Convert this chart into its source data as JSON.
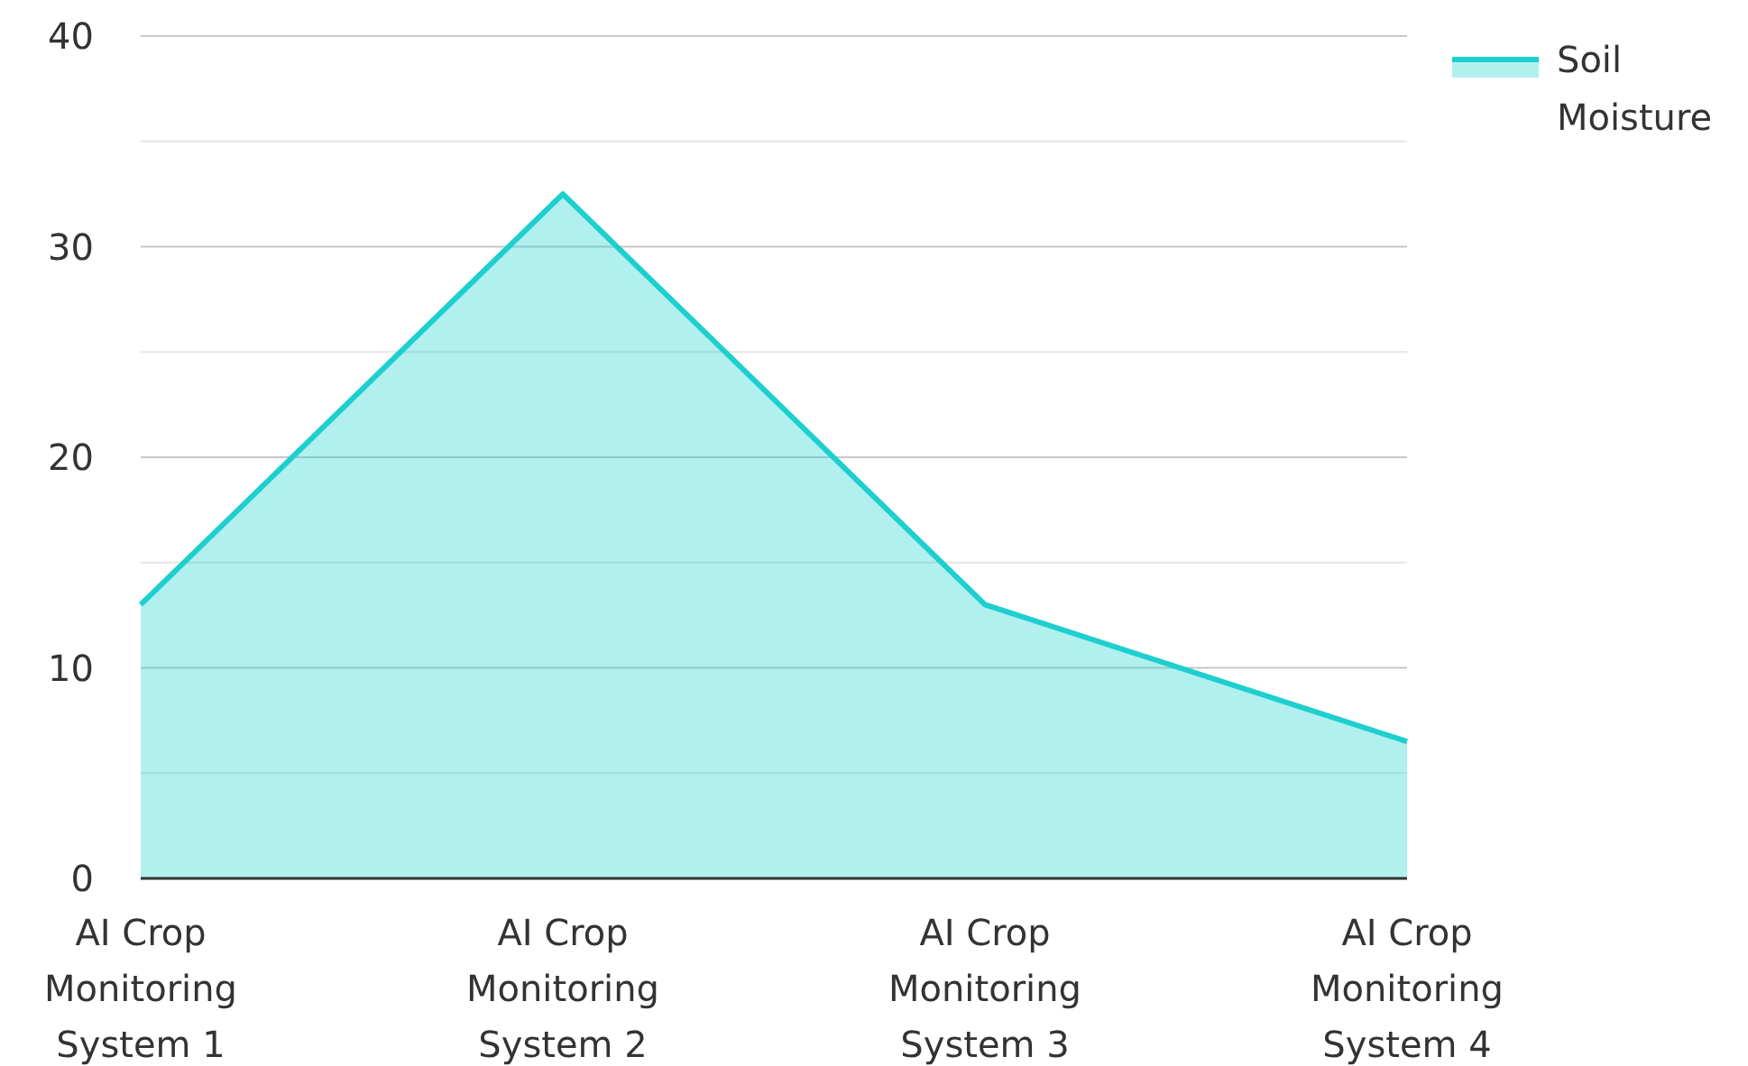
{
  "chart_data": {
    "type": "area",
    "categories": [
      "AI Crop Monitoring System 1",
      "AI Crop Monitoring System 2",
      "AI Crop Monitoring System 3",
      "AI Crop Monitoring System 4"
    ],
    "series": [
      {
        "name": "Soil Moisture",
        "color": "#1ecfcf",
        "values": [
          13,
          32.5,
          13,
          6.5
        ]
      }
    ],
    "ylim": [
      0,
      40
    ],
    "yticks": [
      0,
      {
        "value": 5,
        "label": null
      },
      10,
      {
        "value": 15,
        "label": null
      },
      20,
      {
        "value": 25,
        "label": null
      },
      30,
      {
        "value": 35,
        "label": null
      },
      40
    ],
    "grid": "y",
    "legend": "top right"
  }
}
